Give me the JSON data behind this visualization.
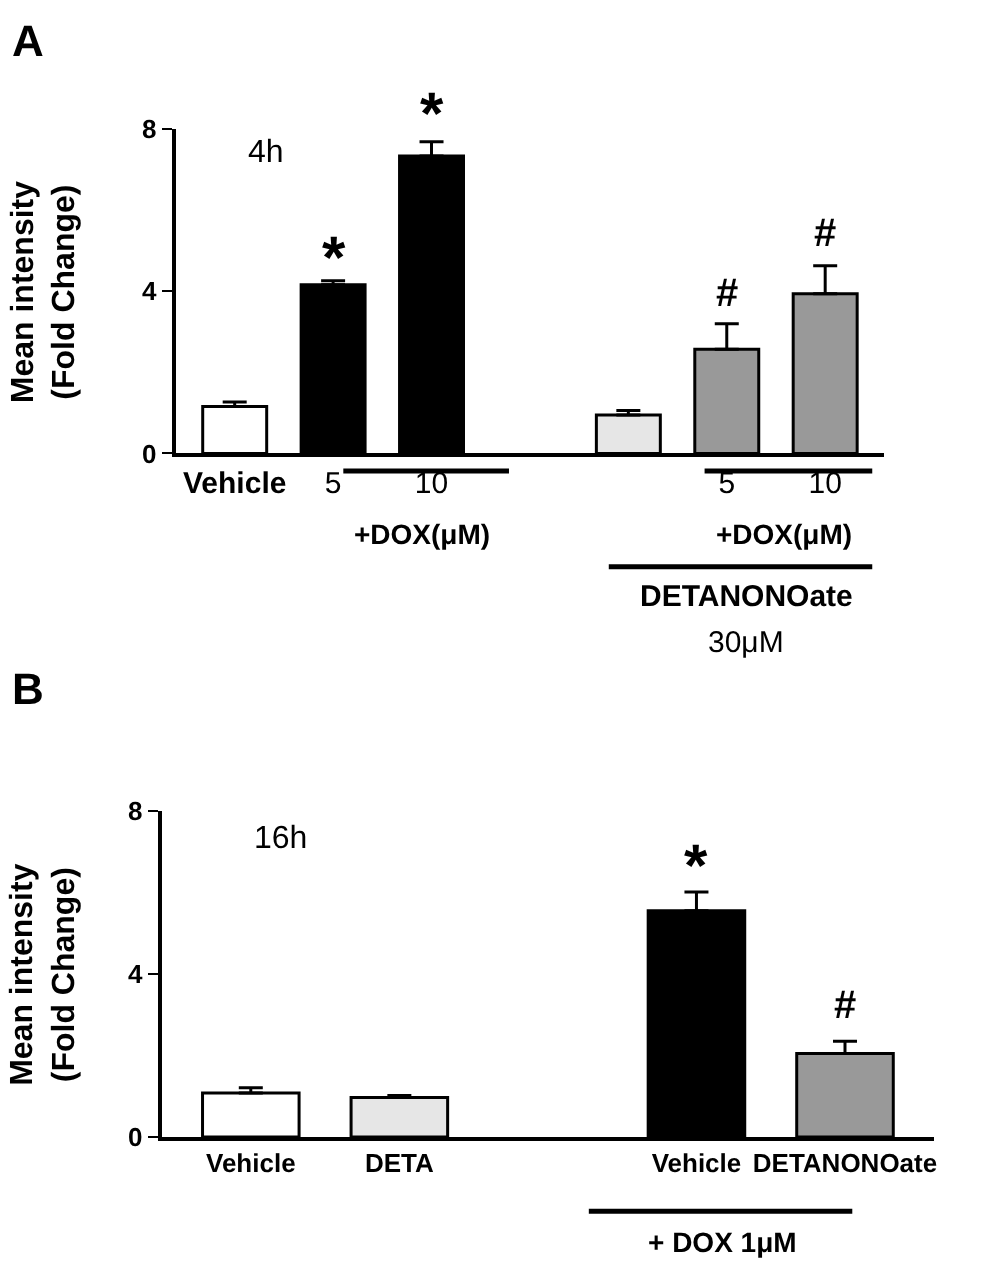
{
  "chart_data": [
    {
      "type": "bar",
      "title": "A",
      "ylabel": "Mean intensity\n(Fold Change)",
      "categories": [
        "Vehicle",
        "5",
        "10",
        null,
        null,
        "5",
        "10"
      ],
      "values": [
        1.16,
        4.16,
        7.34,
        null,
        0.95,
        2.57,
        3.94
      ],
      "colors": [
        "#ffffff",
        "#000000",
        "#000000",
        "#ffffff",
        "#e6e6e6",
        "#999999",
        "#999999"
      ],
      "errors": [
        [
          1.16,
          1.27
        ],
        [
          4.16,
          4.26
        ],
        [
          7.34,
          7.69
        ],
        null,
        [
          0.95,
          1.06
        ],
        [
          2.57,
          3.2
        ],
        [
          3.94,
          4.63
        ]
      ],
      "ylim": [
        0,
        8
      ],
      "yticks": [
        0,
        4,
        8
      ],
      "annotations": [
        "4h",
        "+DOX(μM)",
        "+DOX(μM)",
        "DETANONOate",
        "30μM",
        "*",
        "*",
        "#",
        "#"
      ]
    },
    {
      "type": "bar",
      "title": "B",
      "ylabel": "Mean intensity\n(Fold Change)",
      "categories": [
        "Vehicle",
        "DETA",
        null,
        "Vehicle",
        "DETANONOate"
      ],
      "values": [
        1.08,
        0.97,
        null,
        5.55,
        2.05
      ],
      "colors": [
        "#ffffff",
        "#e6e6e6",
        "#ffffff",
        "#000000",
        "#999999"
      ],
      "errors": [
        [
          1.08,
          1.21
        ],
        [
          0.97,
          1.02
        ],
        null,
        [
          5.55,
          6.01
        ],
        [
          2.05,
          2.35
        ]
      ],
      "ylim": [
        0,
        8
      ],
      "yticks": [
        0,
        4,
        8
      ],
      "annotations": [
        "16h",
        "+ DOX 1μM",
        "*",
        "#"
      ]
    }
  ]
}
